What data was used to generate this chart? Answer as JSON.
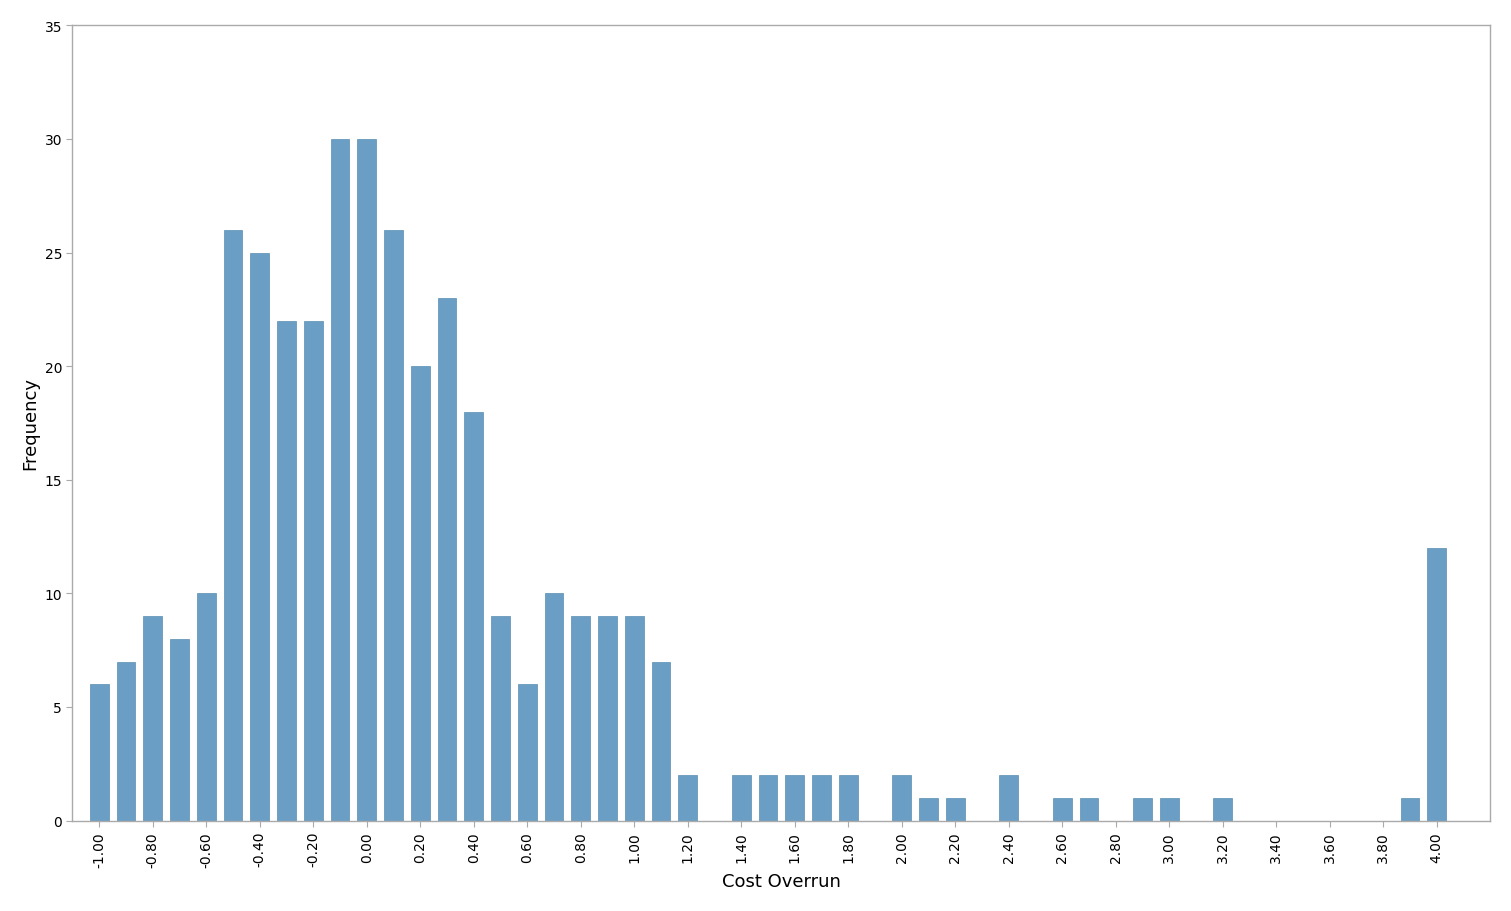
{
  "bar_centers": [
    -1.0,
    -0.9,
    -0.8,
    -0.7,
    -0.6,
    -0.5,
    -0.4,
    -0.3,
    -0.2,
    -0.1,
    0.0,
    0.1,
    0.2,
    0.3,
    0.4,
    0.5,
    0.6,
    0.7,
    0.8,
    0.9,
    1.0,
    1.1,
    1.2,
    1.3,
    1.4,
    1.5,
    1.6,
    1.7,
    1.8,
    1.9,
    2.0,
    2.1,
    2.2,
    2.3,
    2.4,
    2.5,
    2.6,
    2.7,
    2.8,
    2.9,
    3.0,
    3.1,
    3.2,
    3.3,
    3.4,
    3.5,
    3.6,
    3.7,
    3.8,
    3.9,
    4.0
  ],
  "frequencies": [
    6,
    7,
    9,
    8,
    10,
    26,
    25,
    22,
    22,
    30,
    30,
    26,
    20,
    23,
    18,
    9,
    6,
    10,
    9,
    9,
    9,
    7,
    2,
    0,
    2,
    2,
    2,
    2,
    2,
    0,
    2,
    1,
    1,
    0,
    2,
    0,
    1,
    1,
    0,
    1,
    1,
    0,
    1,
    0,
    0,
    0,
    0,
    0,
    0,
    1,
    12
  ],
  "bar_width": 0.07,
  "bar_color": "#6A9EC4",
  "bar_edgecolor": "#5A8EB4",
  "xlabel": "Cost Overrun",
  "ylabel": "Frequency",
  "xlim": [
    -1.1,
    4.2
  ],
  "ylim": [
    0,
    35
  ],
  "yticks": [
    0,
    5,
    10,
    15,
    20,
    25,
    30,
    35
  ],
  "xticks": [
    -1.0,
    -0.8,
    -0.6,
    -0.4,
    -0.2,
    0.0,
    0.2,
    0.4,
    0.6,
    0.8,
    1.0,
    1.2,
    1.4,
    1.6,
    1.8,
    2.0,
    2.2,
    2.4,
    2.6,
    2.8,
    3.0,
    3.2,
    3.4,
    3.6,
    3.8,
    4.0
  ],
  "xtick_labels": [
    "-1.00",
    "-0.80",
    "-0.60",
    "-0.40",
    "-0.20",
    "0.00",
    "0.20",
    "0.40",
    "0.60",
    "0.80",
    "1.00",
    "1.20",
    "1.40",
    "1.60",
    "1.80",
    "2.00",
    "2.20",
    "2.40",
    "2.60",
    "2.80",
    "3.00",
    "3.20",
    "3.40",
    "3.60",
    "3.80",
    "4.00"
  ],
  "background_color": "#FFFFFF",
  "plot_bg_color": "#FFFFFF",
  "figure_width": 15.11,
  "figure_height": 9.12,
  "dpi": 100,
  "xlabel_fontsize": 13,
  "ylabel_fontsize": 13,
  "tick_fontsize": 10,
  "border_color": "#AAAAAA",
  "spine_linewidth": 1.0
}
